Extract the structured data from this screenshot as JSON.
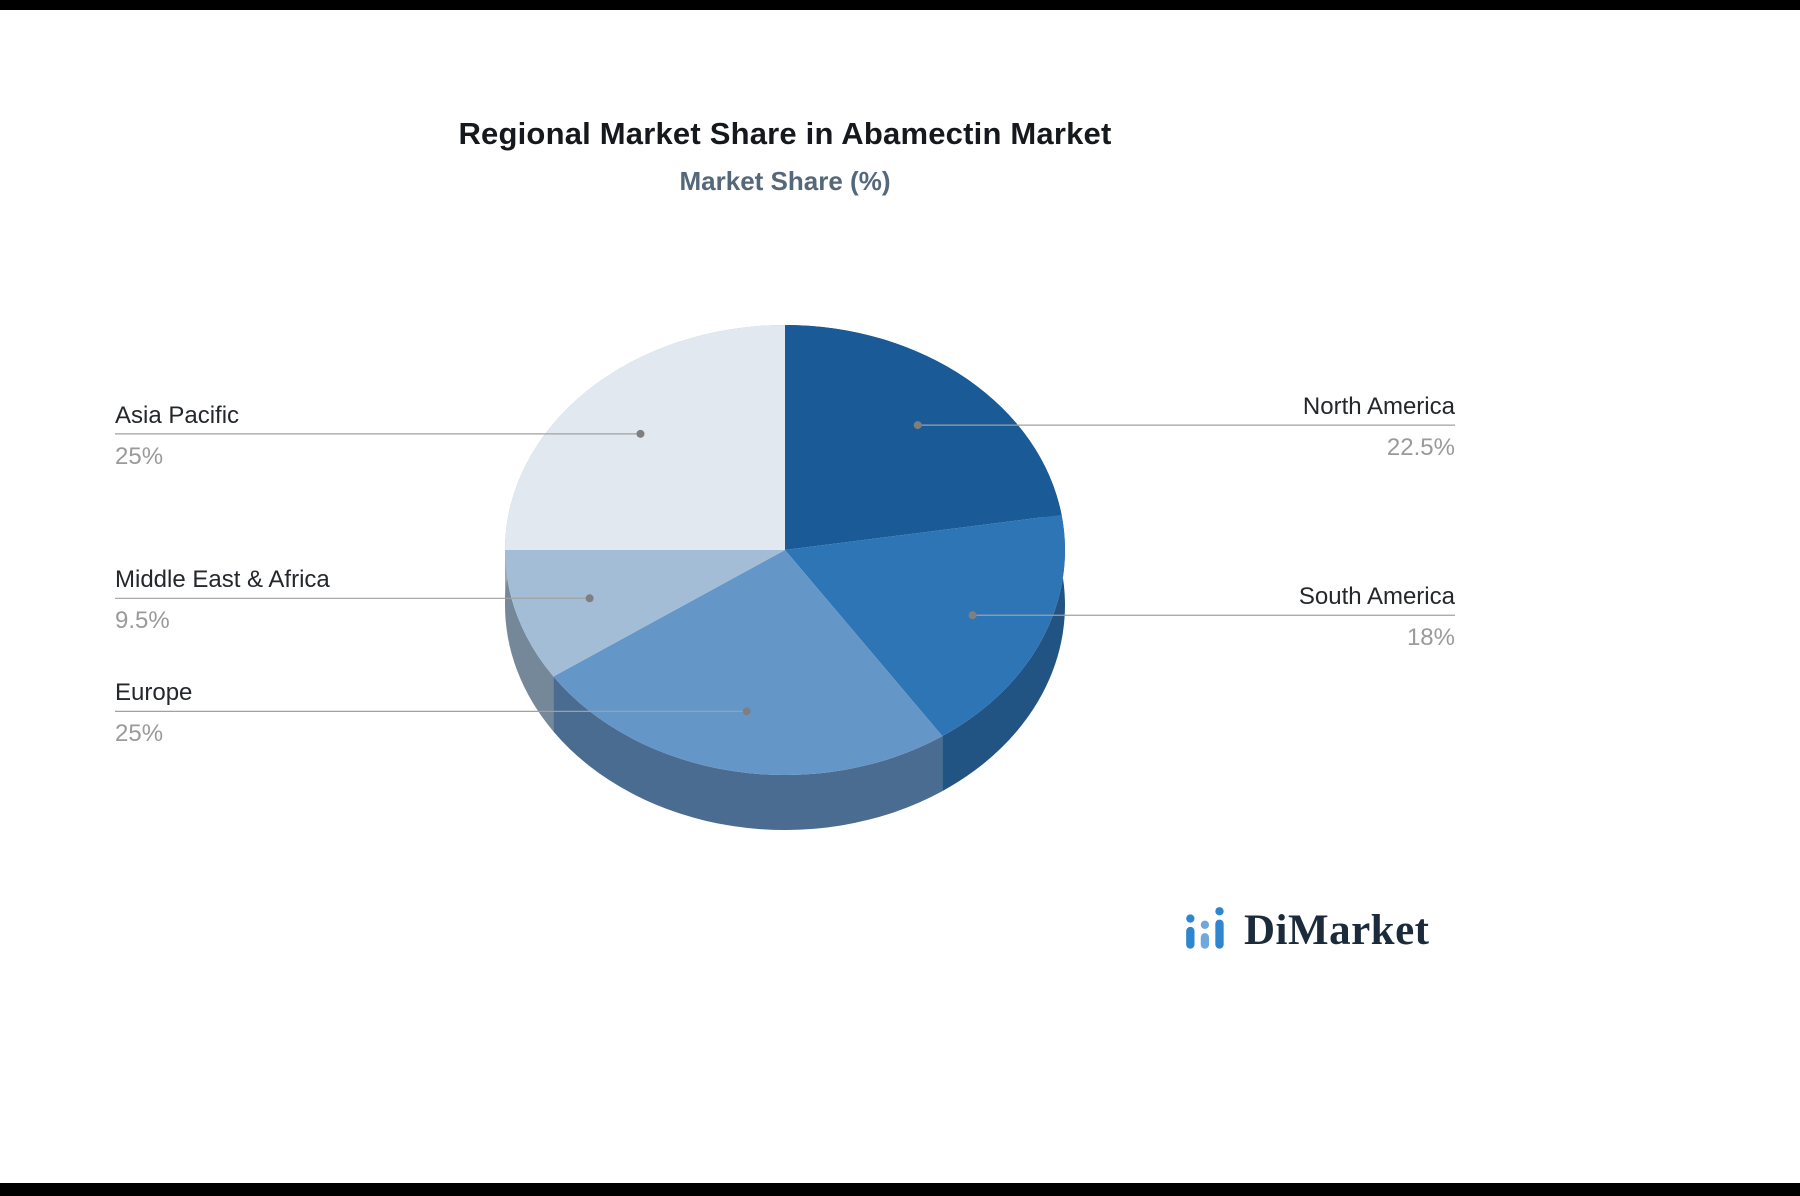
{
  "header": {
    "title": "Regional Market Share in Abamectin Market",
    "subtitle": "Market Share (%)"
  },
  "chart_data": {
    "type": "pie",
    "title": "Regional Market Share in Abamectin Market",
    "subtitle": "Market Share (%)",
    "unit": "%",
    "effect": "3d",
    "start_angle_deg": -90,
    "direction": "clockwise",
    "legend_position": "callout-labels",
    "segments": [
      {
        "label": "North America",
        "value": 22.5,
        "display": "22.5%",
        "color": "#1A5A97"
      },
      {
        "label": "South America",
        "value": 18,
        "display": "18%",
        "color": "#2E75B6"
      },
      {
        "label": "Europe",
        "value": 25,
        "display": "25%",
        "color": "#6596C8"
      },
      {
        "label": "Middle East & Africa",
        "value": 9.5,
        "display": "9.5%",
        "color": "#A3BDD6"
      },
      {
        "label": "Asia Pacific",
        "value": 25,
        "display": "25%",
        "color": "#E2E8EF"
      }
    ],
    "callout_line_color": "#a0a0a0",
    "callout_dot_color": "#7f7f7f",
    "label_color": "#24272b",
    "value_color": "#9a9a9a"
  },
  "branding": {
    "logo_text": "DiMarket",
    "logo_icon": "bar-chart-icon",
    "logo_text_color": "#1b2b3c",
    "logo_icon_color": "#2E86D1",
    "logo_icon_accent": "#6FA8DC"
  }
}
